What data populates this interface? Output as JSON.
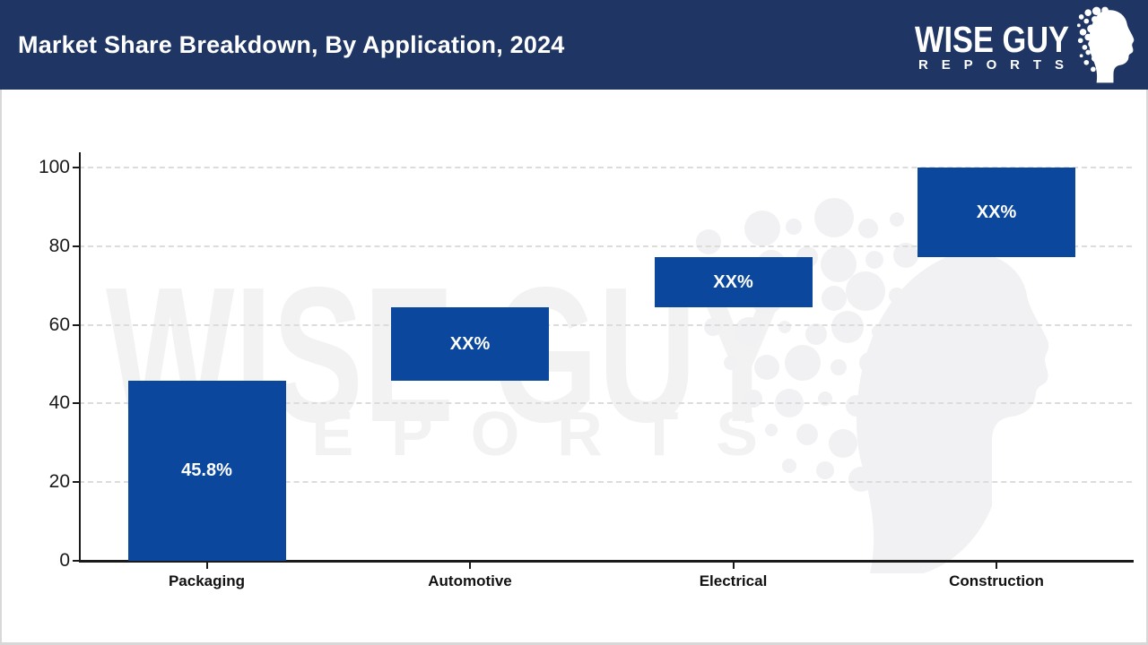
{
  "header": {
    "title": "Market Share Breakdown, By Application, 2024",
    "bg_color": "#1f3564",
    "logo": {
      "line1": "WISE GUY",
      "line2": "REPORTS"
    }
  },
  "watermark": {
    "line1": "WISE GUY",
    "line2": "REPORTS"
  },
  "chart_data": {
    "type": "bar",
    "subtype": "waterfall",
    "title": "Market Share Breakdown, By Application, 2024",
    "categories": [
      "Packaging",
      "Automotive",
      "Electrical",
      "Construction"
    ],
    "segments": [
      {
        "category": "Packaging",
        "from": 0,
        "to": 45.8,
        "label": "45.8%"
      },
      {
        "category": "Automotive",
        "from": 45.8,
        "to": 64.4,
        "label": "XX%"
      },
      {
        "category": "Electrical",
        "from": 64.4,
        "to": 77.2,
        "label": "XX%"
      },
      {
        "category": "Construction",
        "from": 77.2,
        "to": 100,
        "label": "XX%"
      }
    ],
    "ylim": [
      0,
      100
    ],
    "y_ticks": [
      0,
      20,
      40,
      60,
      80,
      100
    ],
    "grid": "horizontal-dashed",
    "legend": "none",
    "bar_color": "#0a479d",
    "bar_label_color": "#ffffff",
    "axis_color": "#1a1a1a",
    "gridline_color": "#dcdcdc"
  }
}
